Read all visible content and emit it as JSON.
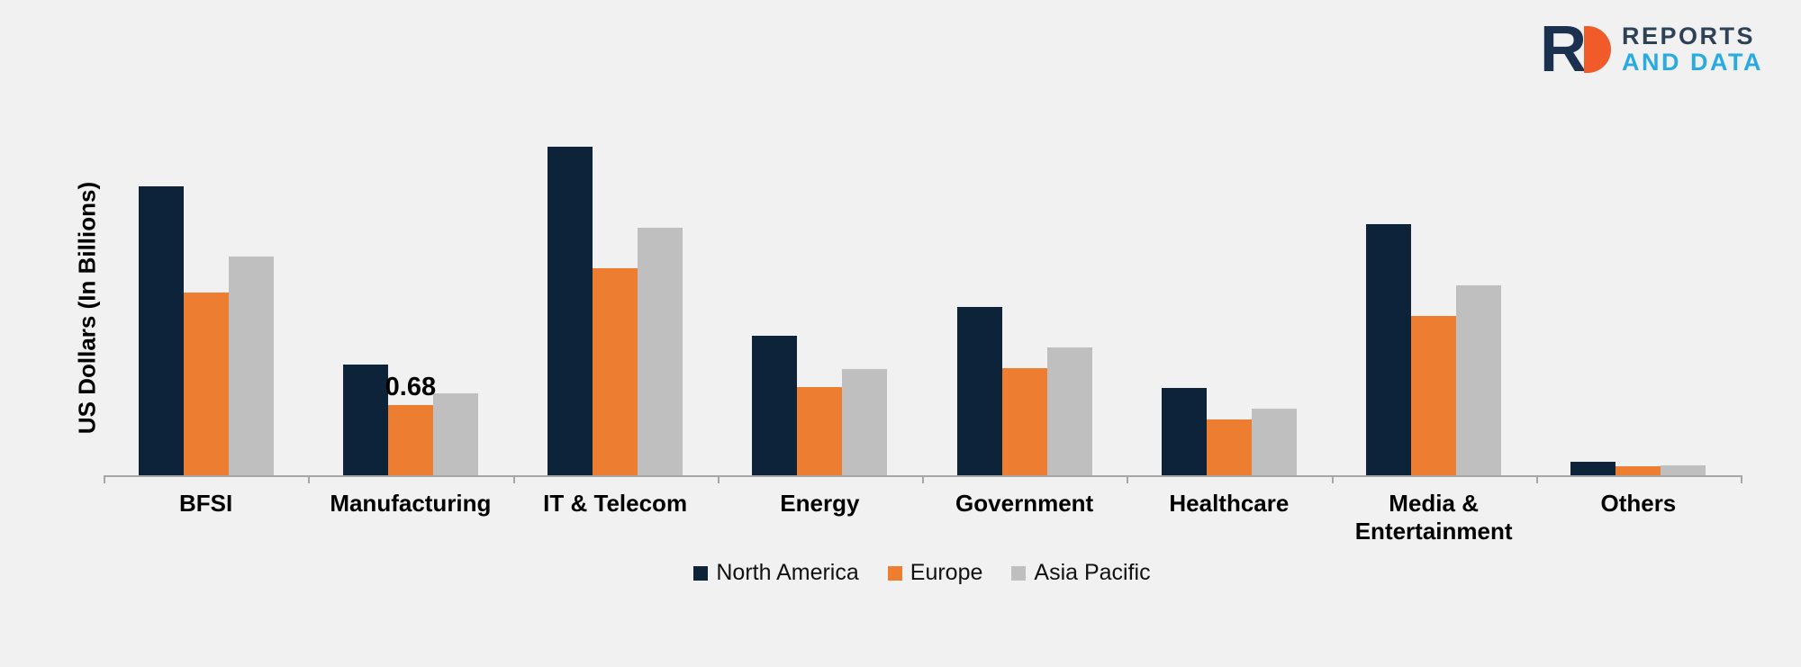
{
  "page": {
    "background": "#f1f1f1"
  },
  "logo": {
    "mark_letter": "R",
    "line1": "REPORTS",
    "line2": "AND DATA",
    "navy": "#1b3150",
    "orange": "#f15a29",
    "light_blue": "#29abe2",
    "text_dark": "#2e4257"
  },
  "chart_data": {
    "type": "bar",
    "title": "",
    "xlabel": "",
    "ylabel": "US Dollars (In Billions)",
    "ylim": [
      0,
      3.85
    ],
    "grid": false,
    "legend_position": "bottom-center",
    "axis_color": "#a6a6a6",
    "categories": [
      "BFSI",
      "Manufacturing",
      "IT & Telecom",
      "Energy",
      "Government",
      "Healthcare",
      "Media & Entertainment",
      "Others"
    ],
    "series": [
      {
        "name": "North America",
        "color": "#0c2339",
        "values": [
          2.81,
          1.08,
          3.19,
          1.36,
          1.64,
          0.85,
          2.44,
          0.13
        ]
      },
      {
        "name": "Europe",
        "color": "#ed7d31",
        "values": [
          1.78,
          0.68,
          2.01,
          0.86,
          1.04,
          0.54,
          1.55,
          0.09
        ]
      },
      {
        "name": "Asia Pacific",
        "color": "#bfbfbf",
        "values": [
          2.13,
          0.8,
          2.41,
          1.03,
          1.24,
          0.65,
          1.85,
          0.1
        ]
      }
    ],
    "data_labels": [
      {
        "series": "Europe",
        "category": "Manufacturing",
        "text": "0.68"
      }
    ]
  }
}
